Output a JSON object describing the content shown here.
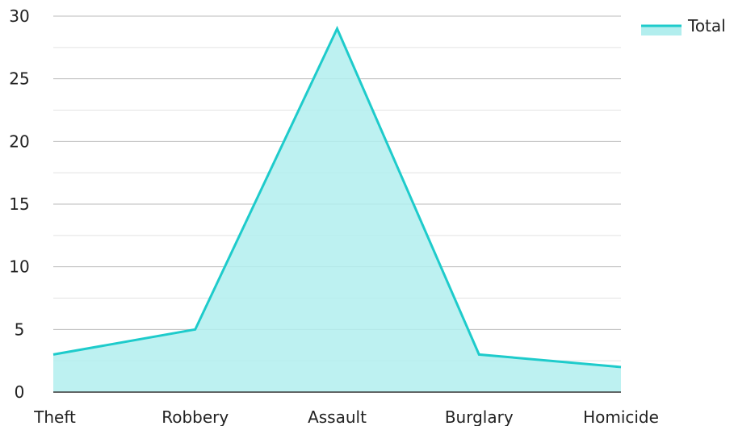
{
  "chart_data": {
    "type": "area",
    "title": "",
    "xlabel": "",
    "ylabel": "",
    "categories": [
      "Theft",
      "Robbery",
      "Assault",
      "Burglary",
      "Homicide"
    ],
    "series": [
      {
        "name": "Total",
        "values": [
          3,
          5,
          29,
          3,
          2
        ]
      }
    ],
    "ylim": [
      0,
      30
    ],
    "y_ticks": [
      "0",
      "5",
      "10",
      "15",
      "20",
      "25",
      "30"
    ],
    "grid": true,
    "legend": "top-right",
    "colors": {
      "line": "#1ECBCB",
      "fill": "#B2EEEE",
      "grid_major": "#BBBBBB",
      "grid_minor": "#E3E3E3",
      "axis": "#333333"
    }
  }
}
